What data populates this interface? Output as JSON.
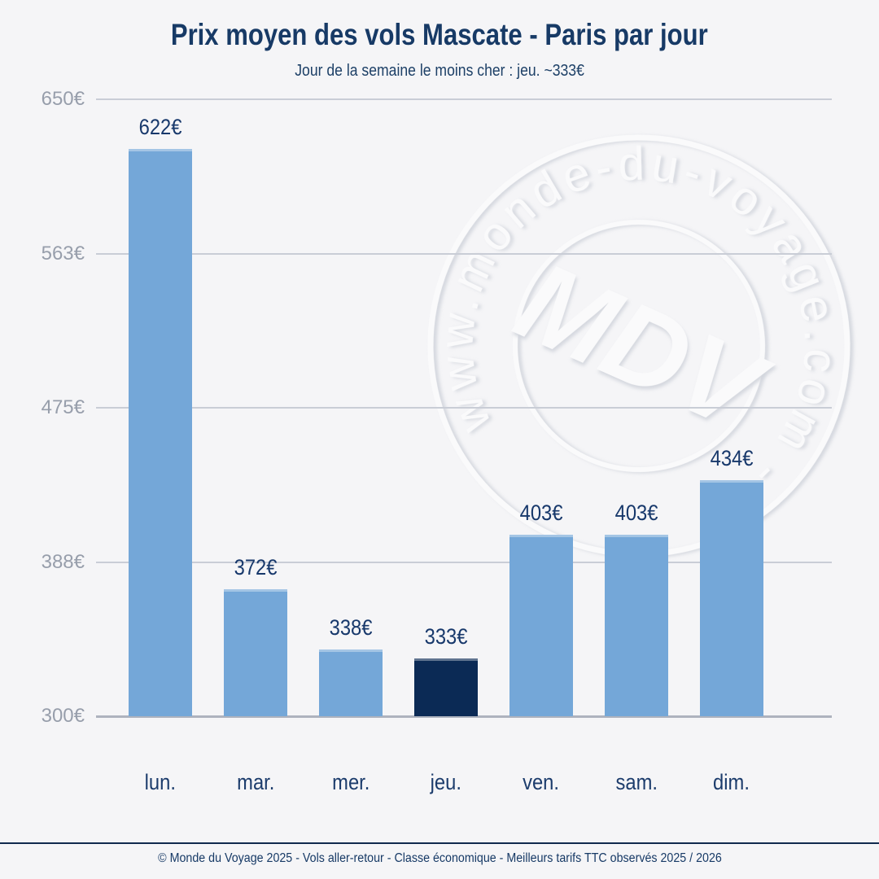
{
  "page": {
    "footer": "© Monde du Voyage 2025 - Vols aller-retour - Classe économique - Meilleurs tarifs TTC observés 2025 / 2026"
  },
  "watermark": {
    "ring_text": "www.monde-du-voyage.com -",
    "center_text": "MDV"
  },
  "chart_data": {
    "type": "bar",
    "title": "Prix moyen des vols Mascate - Paris par jour",
    "subtitle": "Jour de la semaine le moins cher : jeu. ~333€",
    "categories": [
      "lun.",
      "mar.",
      "mer.",
      "jeu.",
      "ven.",
      "sam.",
      "dim."
    ],
    "values": [
      622,
      372,
      338,
      333,
      403,
      403,
      434
    ],
    "value_labels": [
      "622€",
      "372€",
      "338€",
      "333€",
      "403€",
      "403€",
      "434€"
    ],
    "unit": "€",
    "ylim": [
      300,
      650
    ],
    "ytick_labels": [
      "650€",
      "563€",
      "475€",
      "388€",
      "300€"
    ],
    "grid": true,
    "legend_position": "none",
    "highlight_index": 3,
    "highlight_meaning": "jour le moins cher",
    "colors": {
      "bar": "#74a7d8",
      "bar_highlight": "#0b2a55",
      "value_text": "#17386b",
      "axis_text": "#979eab",
      "gridline": "#c9cdd6",
      "background": "#f5f5f7"
    }
  }
}
